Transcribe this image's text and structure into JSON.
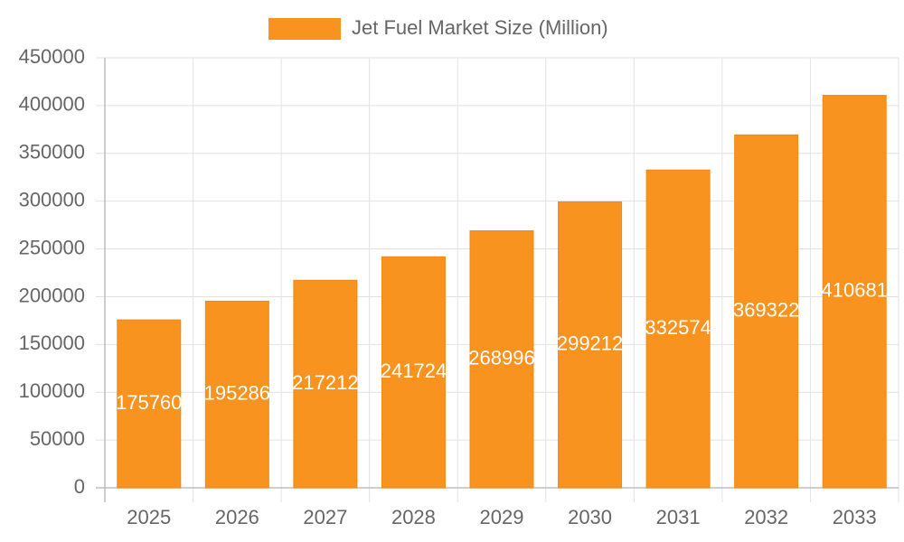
{
  "chart_data": {
    "type": "bar",
    "categories": [
      "2025",
      "2026",
      "2027",
      "2028",
      "2029",
      "2030",
      "2031",
      "2032",
      "2033"
    ],
    "series": [
      {
        "name": "Jet Fuel Market Size (Million)",
        "color": "#f7931e",
        "values": [
          175760,
          195286,
          217212,
          241724,
          268996,
          299212,
          332574,
          369322,
          410681
        ]
      }
    ],
    "ylim": [
      0,
      450000
    ],
    "yticks": [
      0,
      50000,
      100000,
      150000,
      200000,
      250000,
      300000,
      350000,
      400000,
      450000
    ],
    "grid": true,
    "legend": "top",
    "data_labels": true
  }
}
